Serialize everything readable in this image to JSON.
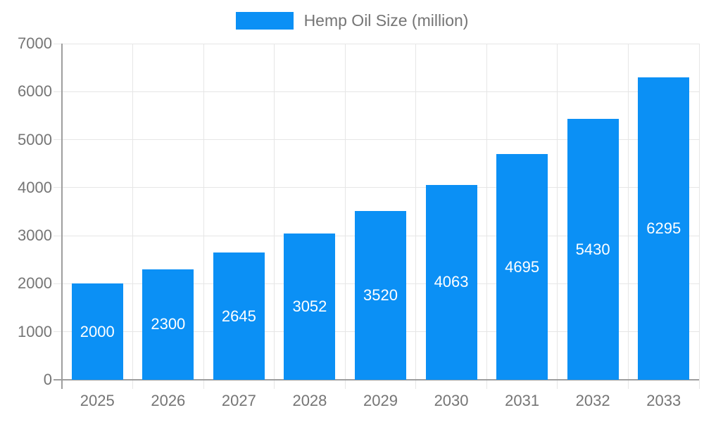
{
  "chart_data": {
    "type": "bar",
    "title": "Hemp Oil Size (million)",
    "categories": [
      "2025",
      "2026",
      "2027",
      "2028",
      "2029",
      "2030",
      "2031",
      "2032",
      "2033"
    ],
    "values": [
      2000,
      2300,
      2645,
      3052,
      3520,
      4063,
      4695,
      5430,
      6295
    ],
    "bar_labels": [
      "2000",
      "2300",
      "2645",
      "3052",
      "3520",
      "4063",
      "4695",
      "5430",
      "6295"
    ],
    "xlabel": "",
    "ylabel": "",
    "ylim": [
      0,
      7000
    ],
    "yticks": [
      0,
      1000,
      2000,
      3000,
      4000,
      5000,
      6000,
      7000
    ],
    "ytick_labels": [
      "0",
      "1000",
      "2000",
      "3000",
      "4000",
      "5000",
      "6000",
      "7000"
    ],
    "grid": true,
    "legend_position": "top-center",
    "colors": {
      "bar": "#0b90f5",
      "bar_label": "#ffffff",
      "axis_text": "#757575",
      "axis_line": "#9e9e9e",
      "gridline": "#e6e6e6",
      "background": "#ffffff"
    }
  }
}
